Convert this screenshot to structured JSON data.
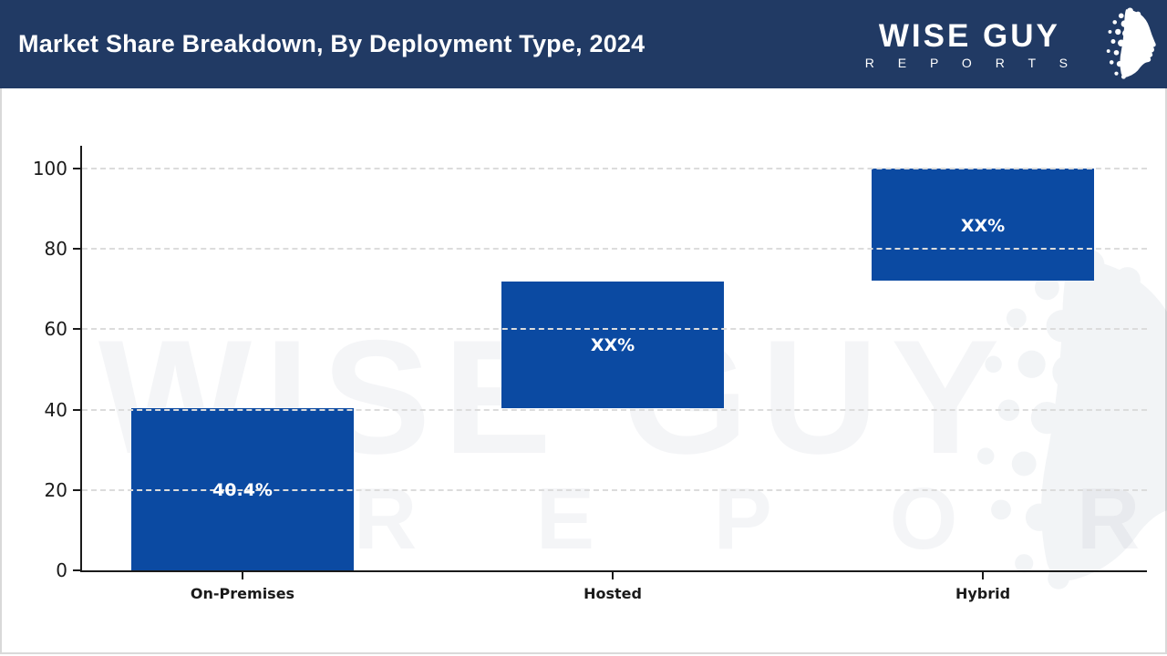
{
  "header": {
    "title": "Market Share Breakdown, By Deployment Type, 2024",
    "logo": {
      "line1": "WISE GUY",
      "line2": "R E P O R T S",
      "face_icon": "dotted-head-profile"
    }
  },
  "watermark": {
    "line1": "WISE GUY",
    "line2": "R E P O R T S",
    "face_icon": "dotted-head-profile"
  },
  "chart_data": {
    "type": "bar",
    "subtype": "waterfall-floating-bars",
    "title": "Market Share Breakdown, By Deployment Type, 2024",
    "categories": [
      "On-Premises",
      "Hosted",
      "Hybrid"
    ],
    "segments": [
      {
        "category": "On-Premises",
        "start": 0,
        "end": 40.4,
        "label": "40.4%"
      },
      {
        "category": "Hosted",
        "start": 40.4,
        "end": 72,
        "label": "XX%"
      },
      {
        "category": "Hybrid",
        "start": 72,
        "end": 100,
        "label": "XX%"
      }
    ],
    "xlabel": "",
    "ylabel": "",
    "ylim": [
      0,
      100
    ],
    "yticks": [
      0,
      20,
      40,
      60,
      80,
      100
    ],
    "grid": "horizontal-dashed",
    "legend": "none",
    "gridlines_over_bars": true
  },
  "colors": {
    "header_bg": "#213a64",
    "bar_fill": "#0b4aa2",
    "bar_label": "#ffffff",
    "axis": "#1a1a1a",
    "gridline": "#dcdcdc",
    "title_text": "#ffffff"
  }
}
